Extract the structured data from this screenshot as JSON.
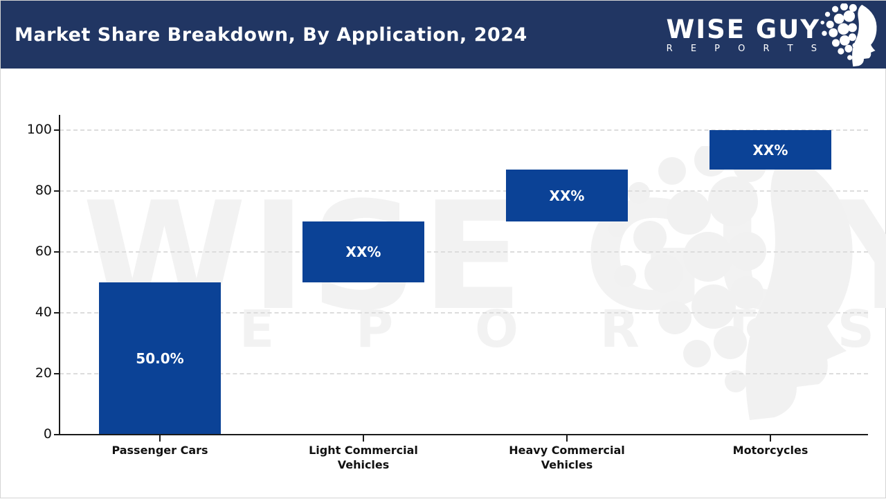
{
  "header": {
    "title": "Market Share Breakdown, By Application, 2024",
    "bg_color": "#213663",
    "logo": {
      "line1": "WISE GUY",
      "line2": "R E P O R T S"
    }
  },
  "watermark": {
    "line1": "WISE GUY",
    "line2": "R E P O R T S"
  },
  "chart_data": {
    "type": "bar",
    "subtype": "stacked-waterfall",
    "title": "Market Share Breakdown, By Application, 2024",
    "categories": [
      "Passenger Cars",
      "Light Commercial\nVehicles",
      "Heavy Commercial\nVehicles",
      "Motorcycles"
    ],
    "segments": [
      {
        "category": "Passenger Cars",
        "start": 0,
        "end": 50,
        "label": "50.0%"
      },
      {
        "category": "Light Commercial Vehicles",
        "start": 50,
        "end": 70,
        "label": "XX%"
      },
      {
        "category": "Heavy Commercial Vehicles",
        "start": 70,
        "end": 87,
        "label": "XX%"
      },
      {
        "category": "Motorcycles",
        "start": 87,
        "end": 100,
        "label": "XX%"
      }
    ],
    "yticks": [
      0,
      20,
      40,
      60,
      80,
      100
    ],
    "ylim": [
      0,
      105
    ],
    "xlabel": "",
    "ylabel": "",
    "grid": "horizontal-dashed",
    "legend": "none",
    "bar_color": "#0b4296",
    "bar_label_color": "#ffffff"
  }
}
